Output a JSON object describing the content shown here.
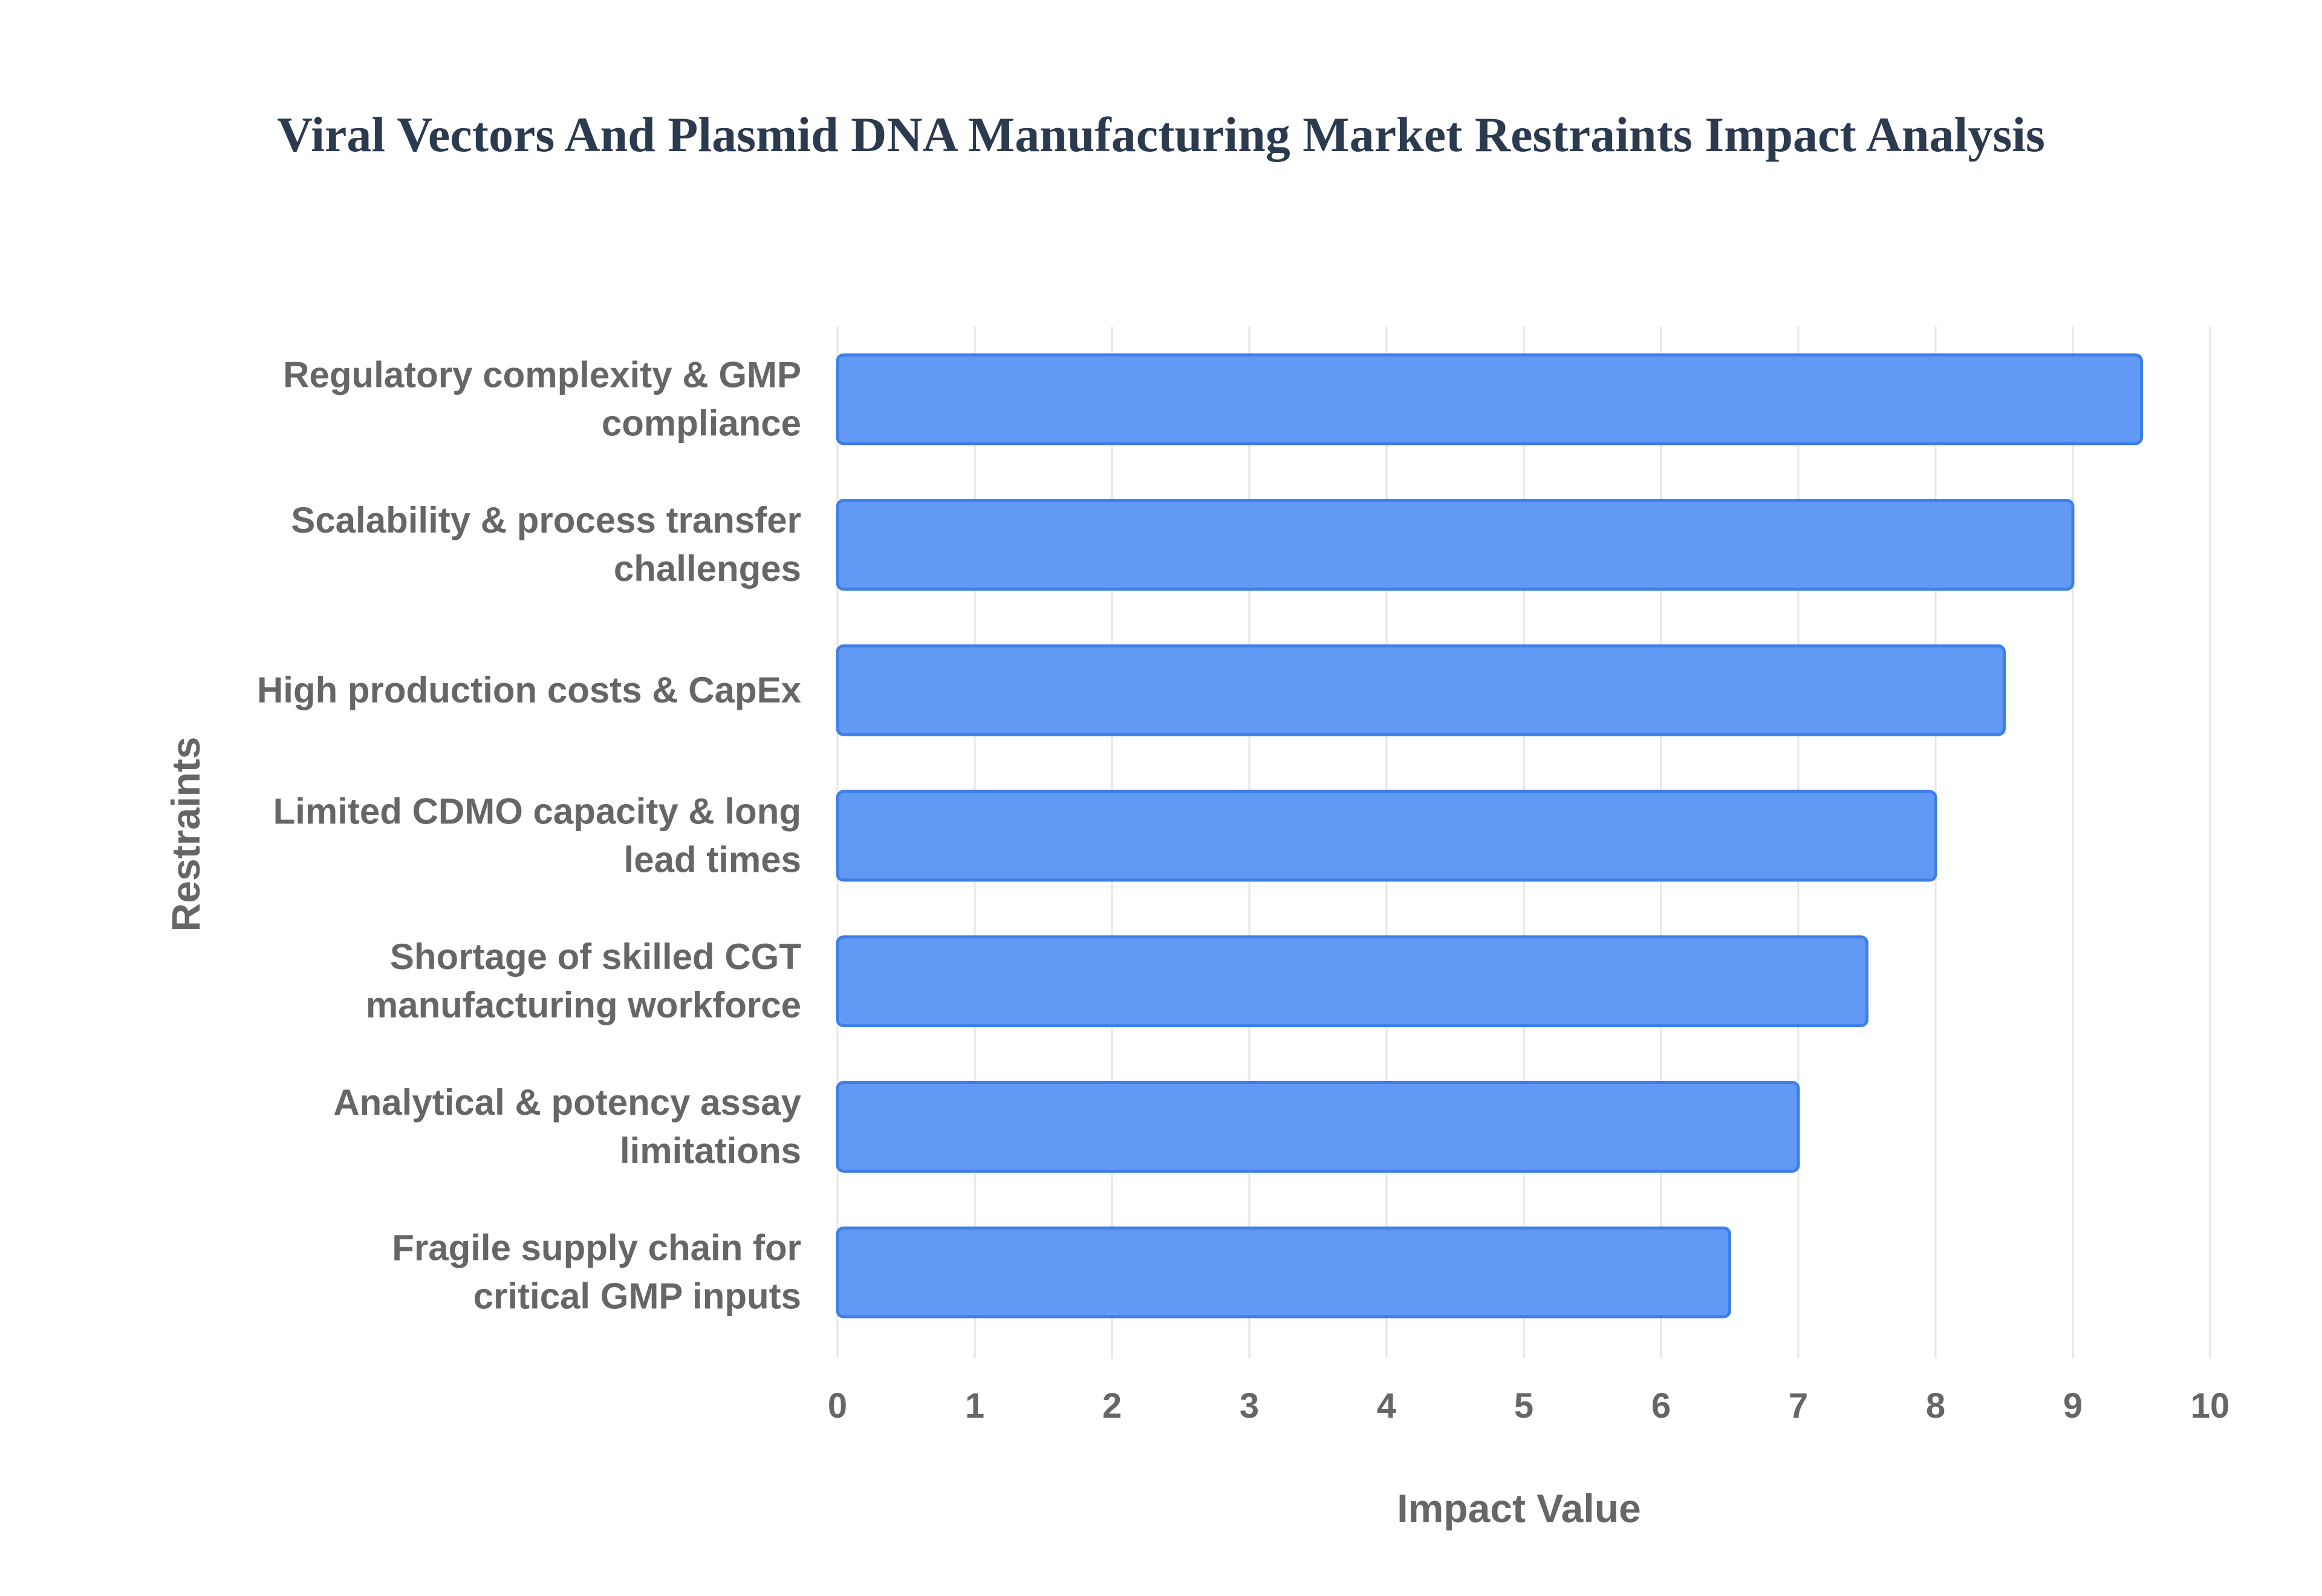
{
  "chart_data": {
    "type": "bar",
    "orientation": "horizontal",
    "title": "Viral Vectors And Plasmid DNA Manufacturing Market Restraints Impact Analysis",
    "xlabel": "Impact Value",
    "ylabel": "Restraints",
    "xlim": [
      0,
      10
    ],
    "xticks": [
      "0",
      "1",
      "2",
      "3",
      "4",
      "5",
      "6",
      "7",
      "8",
      "9",
      "10"
    ],
    "grid": true,
    "legend": "none",
    "categories": [
      [
        "Regulatory complexity & GMP",
        "compliance"
      ],
      [
        "Scalability & process transfer",
        "challenges"
      ],
      [
        "High production costs & CapEx"
      ],
      [
        "Limited CDMO capacity & long",
        "lead times"
      ],
      [
        "Shortage of skilled CGT",
        "manufacturing workforce"
      ],
      [
        "Analytical & potency assay",
        "limitations"
      ],
      [
        "Fragile supply chain for",
        "critical GMP inputs"
      ]
    ],
    "values": [
      9.5,
      9.0,
      8.5,
      8.0,
      7.5,
      7.0,
      6.5
    ],
    "colors": {
      "bar_fill": "#6199f5",
      "bar_stroke": "#3f7ee8",
      "grid": "#e6e6e6",
      "text": "#666666",
      "title": "#2b3a4e"
    }
  }
}
